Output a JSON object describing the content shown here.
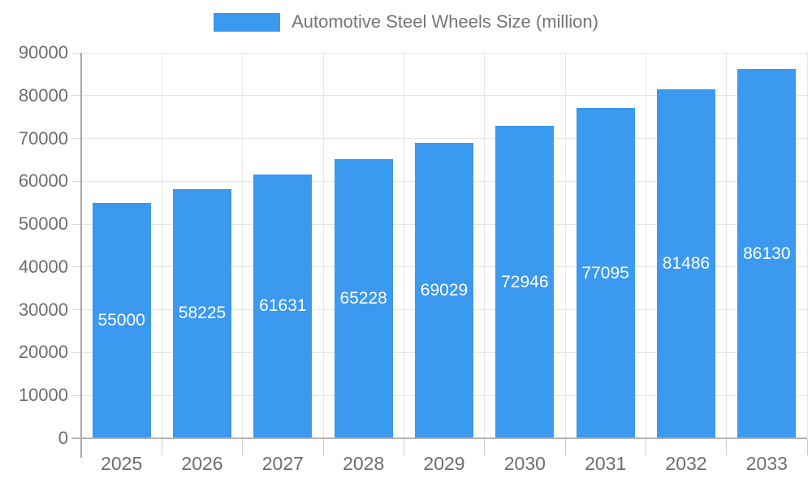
{
  "chart_data": {
    "type": "bar",
    "title": "Automotive Steel Wheels Size (million)",
    "categories": [
      "2025",
      "2026",
      "2027",
      "2028",
      "2029",
      "2030",
      "2031",
      "2032",
      "2033"
    ],
    "values": [
      55000,
      58225,
      61631,
      65228,
      69029,
      72946,
      77095,
      81486,
      86130
    ],
    "bar_labels": [
      "55000",
      "58225",
      "61631",
      "65228",
      "69029",
      "72946",
      "77095",
      "81486",
      "86130"
    ],
    "xlabel": "",
    "ylabel": "",
    "ylim": [
      0,
      90000
    ],
    "yticks": [
      0,
      10000,
      20000,
      30000,
      40000,
      50000,
      60000,
      70000,
      80000,
      90000
    ],
    "ytick_labels": [
      "0",
      "10000",
      "20000",
      "30000",
      "40000",
      "50000",
      "60000",
      "70000",
      "80000",
      "90000"
    ],
    "grid": "on",
    "legend_position": "top",
    "bar_color": "#3B99EF",
    "bar_label_color": "#FFFFFF"
  },
  "legend": {
    "label": "Automotive Steel Wheels Size (million)",
    "swatch_color": "#3B99EF"
  },
  "colors": {
    "background": "#FFFFFF",
    "grid": "#E6E6E6",
    "y_axis_line": "#A8A8A8",
    "x_axis_line": "#B3B3B3",
    "tick": "#CCCCCC",
    "axis_text": "#6E6E6E",
    "legend_text": "#757575"
  }
}
